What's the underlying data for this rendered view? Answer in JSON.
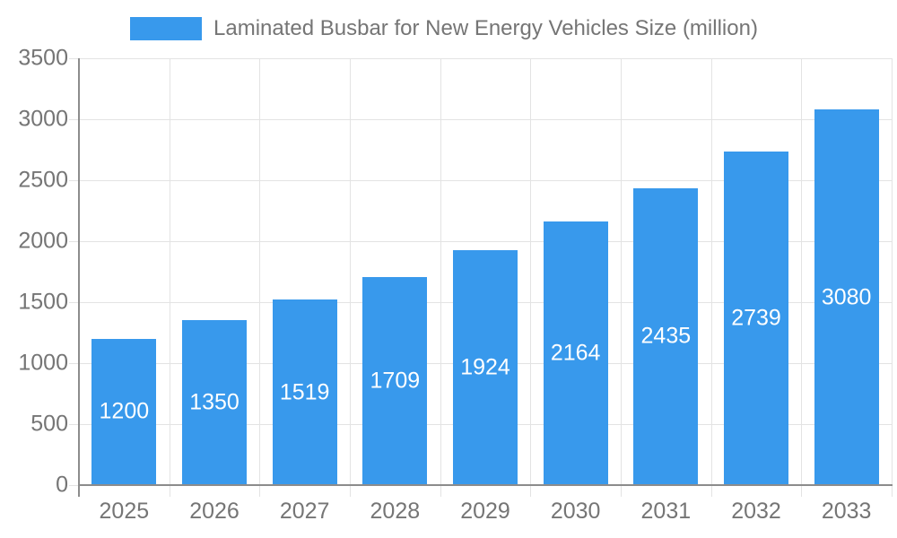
{
  "chart_data": {
    "type": "bar",
    "title": "Laminated Busbar for New Energy Vehicles Size (million)",
    "legend": {
      "position": "top",
      "label": "Laminated Busbar for New Energy Vehicles Size (million)"
    },
    "categories": [
      "2025",
      "2026",
      "2027",
      "2028",
      "2029",
      "2030",
      "2031",
      "2032",
      "2033"
    ],
    "series": [
      {
        "name": "Laminated Busbar for New Energy Vehicles Size (million)",
        "values": [
          1200,
          1350,
          1519,
          1709,
          1924,
          2164,
          2435,
          2739,
          3080
        ]
      }
    ],
    "xlabel": "",
    "ylabel": "",
    "ylim": [
      0,
      3500
    ],
    "yticks": [
      0,
      500,
      1000,
      1500,
      2000,
      2500,
      3000,
      3500
    ],
    "grid": true,
    "data_labels": "inside-center, white",
    "colors": {
      "bar": "#3899EC",
      "bar_label_text": "#ffffff",
      "axis_text": "#757575",
      "grid_line": "#e3e3e3",
      "axis_line": "#8c8c8c",
      "background": "#ffffff"
    }
  }
}
